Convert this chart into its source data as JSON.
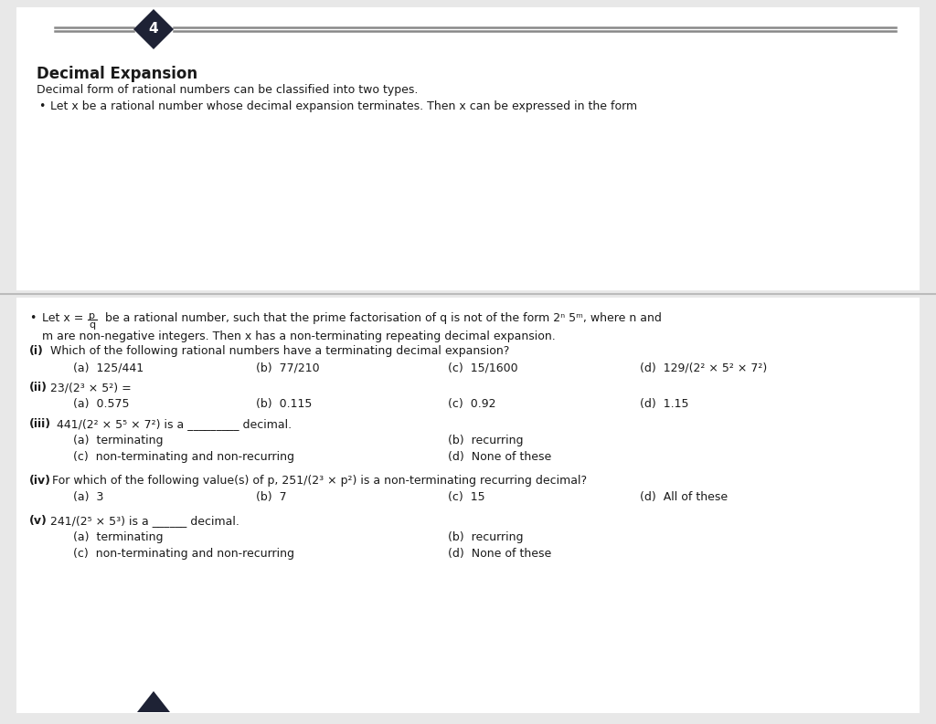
{
  "bg_color": "#e8e8e8",
  "panel1_bg": "#ffffff",
  "panel2_bg": "#ffffff",
  "section_number": "4",
  "title": "Decimal Expansion",
  "subtitle": "Decimal form of rational numbers can be classified into two types.",
  "bullet1": "Let x be a rational number whose decimal expansion terminates. Then x can be expressed in the form",
  "bullet2_line1_pre": "Let x =",
  "bullet2_frac_num": "p",
  "bullet2_frac_den": "q",
  "bullet2_line1_post": " be a rational number, such that the prime factorisation of q is not of the form 2ⁿ 5ᵐ, where n and",
  "bullet2_line2": "m are non-negative integers. Then x has a non-terminating repeating decimal expansion.",
  "q1_label": "(i)",
  "q1_text": "Which of the following rational numbers have a terminating decimal expansion?",
  "q1_a": "(a)  125/441",
  "q1_b": "(b)  77/210",
  "q1_c": "(c)  15/1600",
  "q1_d": "(d)  129/(2² × 5² × 7²)",
  "q2_label": "(ii)",
  "q2_text": "23/(2³ × 5²) =",
  "q2_a": "(a)  0.575",
  "q2_b": "(b)  0.115",
  "q2_c": "(c)  0.92",
  "q2_d": "(d)  1.15",
  "q3_label": "(iii)",
  "q3_text": "441/(2² × 5⁵ × 7²) is a _________ decimal.",
  "q3_a": "(a)  terminating",
  "q3_b": "(b)  recurring",
  "q3_c": "(c)  non-terminating and non-recurring",
  "q3_d": "(d)  None of these",
  "q4_label": "(iv)",
  "q4_text": "For which of the following value(s) of p, 251/(2³ × p²) is a non-terminating recurring decimal?",
  "q4_a": "(a)  3",
  "q4_b": "(b)  7",
  "q4_c": "(c)  15",
  "q4_d": "(d)  All of these",
  "q5_label": "(v)",
  "q5_text": "241/(2⁵ × 5³) is a ______ decimal.",
  "q5_a": "(a)  terminating",
  "q5_b": "(b)  recurring",
  "q5_c": "(c)  non-terminating and non-recurring",
  "q5_d": "(d)  None of these",
  "text_color": "#1a1a1a",
  "diamond_fill": "#1e2235",
  "line_color": "#888888",
  "sep_color": "#bbbbbb",
  "panel_border": "#cccccc",
  "bottom_arrow_color": "#1e2235"
}
